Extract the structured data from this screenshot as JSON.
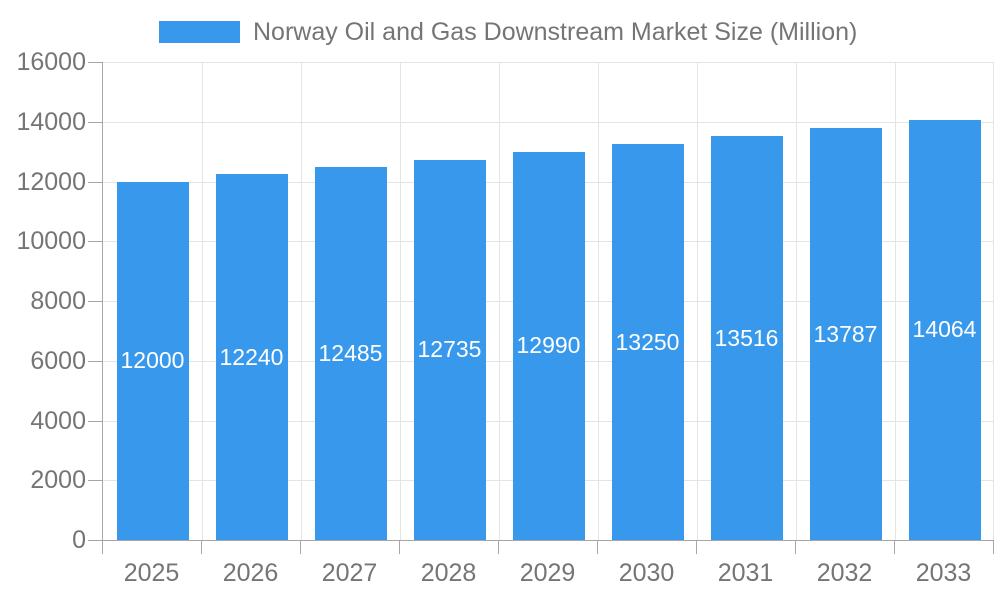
{
  "chart_data": {
    "type": "bar",
    "title": "Norway Oil and Gas Downstream Market Size (Million)",
    "categories": [
      "2025",
      "2026",
      "2027",
      "2028",
      "2029",
      "2030",
      "2031",
      "2032",
      "2033"
    ],
    "values": [
      12000,
      12240,
      12485,
      12735,
      12990,
      13250,
      13516,
      13787,
      14064
    ],
    "xlabel": "",
    "ylabel": "",
    "ylim": [
      0,
      16000
    ],
    "ytick_step": 2000,
    "grid": true,
    "legend_position": "top",
    "colors": {
      "bar": "#3899ec",
      "bar_label_text": "#ffffff",
      "axis_text": "#757575",
      "axis_line": "#a6a6a6",
      "gridline": "#e4e4e4"
    }
  }
}
